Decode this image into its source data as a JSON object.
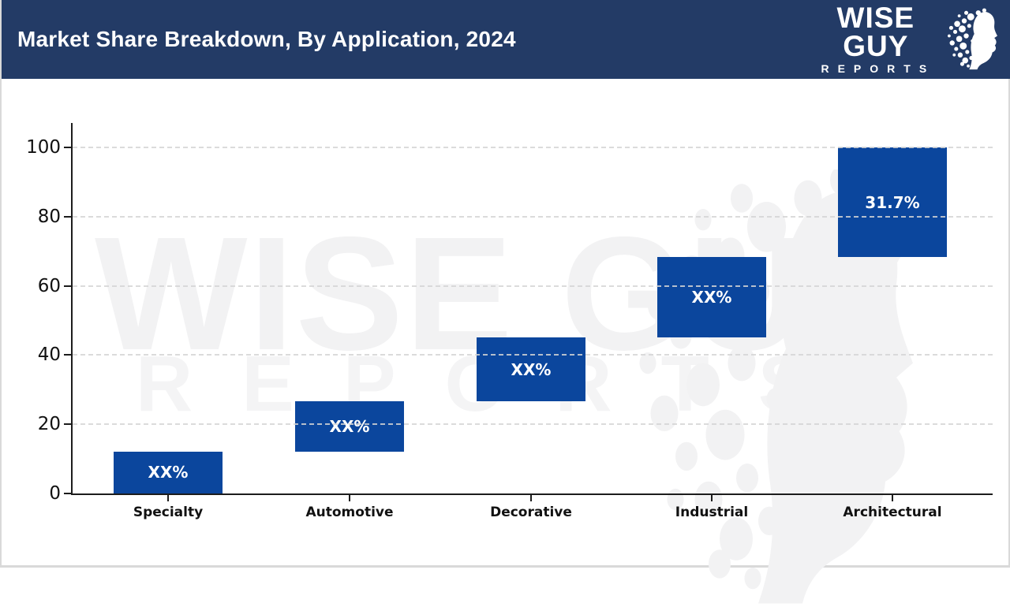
{
  "header": {
    "title": "Market Share Breakdown, By Application, 2024",
    "logo": {
      "name": "WISE GUY",
      "tagline": "REPORTS"
    }
  },
  "watermark": {
    "name": "WISE GUY",
    "tagline": "REPORTS"
  },
  "colors": {
    "header_bg": "#233b66",
    "bar": "#0b469d",
    "bar_label": "#ffffff",
    "grid": "#d5d5d5",
    "axis": "#1c1c1c",
    "watermark": "#f2f2f3"
  },
  "chart_data": {
    "type": "bar",
    "variant": "floating-waterfall",
    "title": "Market Share Breakdown, By Application, 2024",
    "categories": [
      "Specialty",
      "Automotive",
      "Decorative",
      "Industrial",
      "Architectural"
    ],
    "bars": [
      {
        "category": "Specialty",
        "start": 0,
        "end": 12.1,
        "label": "XX%"
      },
      {
        "category": "Automotive",
        "start": 12.1,
        "end": 26.6,
        "label": "XX%"
      },
      {
        "category": "Decorative",
        "start": 26.6,
        "end": 45.0,
        "label": "XX%"
      },
      {
        "category": "Industrial",
        "start": 45.0,
        "end": 68.3,
        "label": "XX%"
      },
      {
        "category": "Architectural",
        "start": 68.3,
        "end": 100,
        "label": "31.7%"
      }
    ],
    "xlabel": "",
    "ylabel": "",
    "ylim": [
      0,
      105
    ],
    "y_ticks": [
      "0",
      "20",
      "40",
      "60",
      "80",
      "100"
    ],
    "grid": "horizontal-dashed",
    "legend": "none"
  }
}
